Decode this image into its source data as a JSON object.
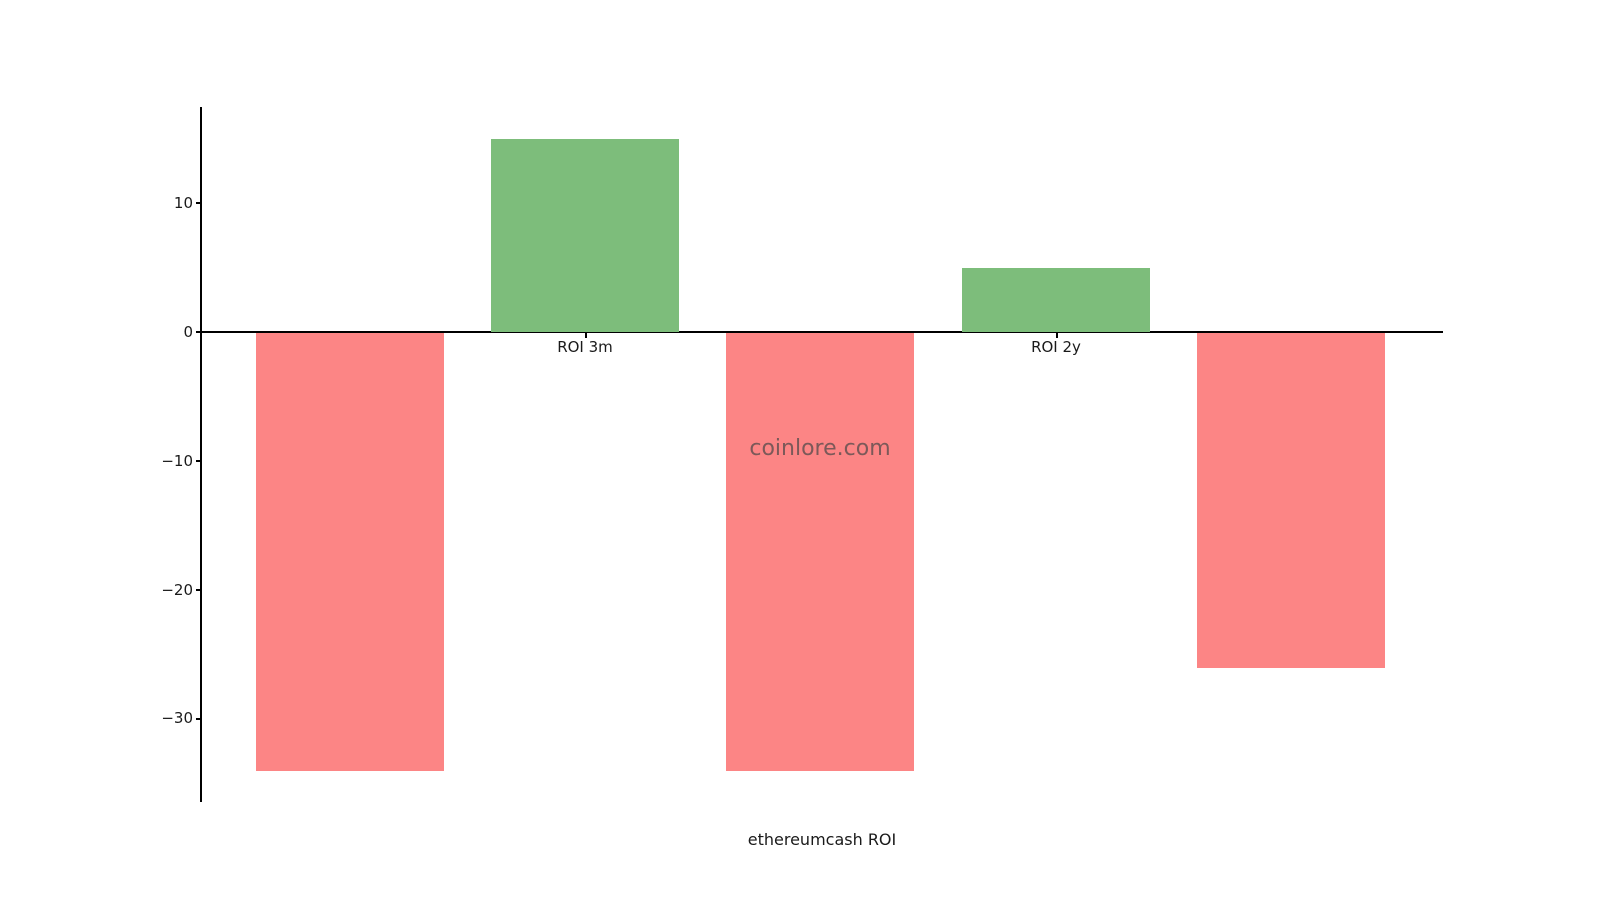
{
  "chart_data": {
    "type": "bar",
    "title": "ethereumcash ROI",
    "watermark": "coinlore.com",
    "xlabel": "",
    "ylabel": "",
    "categories": [
      "",
      "ROI 3m",
      "",
      "ROI 2y",
      ""
    ],
    "values": [
      -34,
      15,
      -34,
      5,
      -26
    ],
    "y_ticks": [
      {
        "value": 10,
        "label": "10"
      },
      {
        "value": 0,
        "label": "0"
      },
      {
        "value": -10,
        "label": "−10"
      },
      {
        "value": -20,
        "label": "−20"
      },
      {
        "value": -30,
        "label": "−30"
      }
    ],
    "ylim": [
      -36.5,
      17.5
    ],
    "grid": false,
    "legend_position": "none",
    "colors": {
      "positive": "#7dbd7b",
      "negative": "#fc8585",
      "axis": "#000000",
      "text": "#1a1a1a",
      "watermark": "rgba(70,70,70,0.7)"
    }
  }
}
